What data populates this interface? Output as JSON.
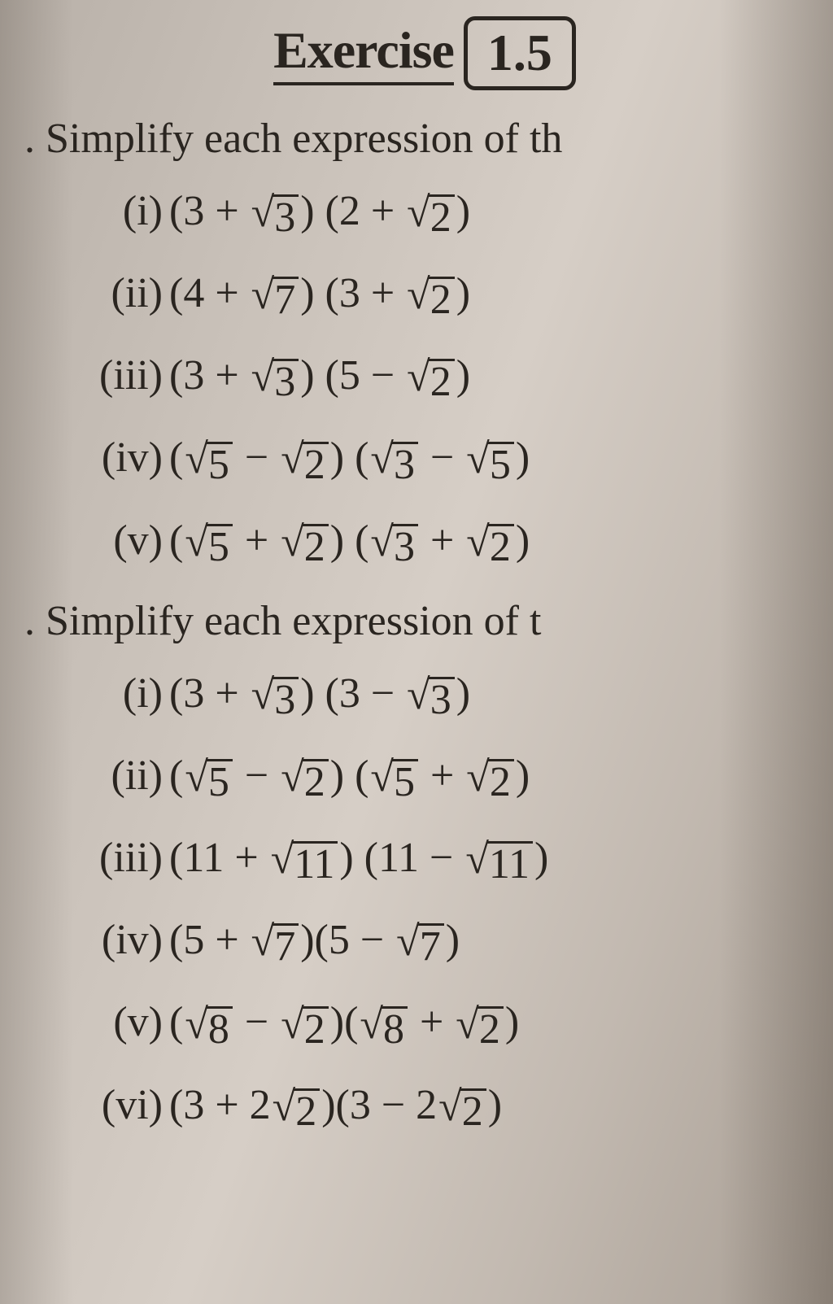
{
  "header": {
    "label": "Exercise",
    "number": "1.5"
  },
  "sections": [
    {
      "instruction": ". Simplify each expression of th",
      "items": [
        {
          "num": "(i)",
          "expr": [
            [
              "(3 + "
            ],
            [
              "sqrt",
              "3"
            ],
            [
              ") (2 + "
            ],
            [
              "sqrt",
              "2"
            ],
            [
              ")"
            ]
          ]
        },
        {
          "num": "(ii)",
          "expr": [
            [
              "(4 + "
            ],
            [
              "sqrt",
              "7"
            ],
            [
              ") (3 + "
            ],
            [
              "sqrt",
              "2"
            ],
            [
              ")"
            ]
          ]
        },
        {
          "num": "(iii)",
          "expr": [
            [
              "(3 + "
            ],
            [
              "sqrt",
              "3"
            ],
            [
              ") (5 − "
            ],
            [
              "sqrt",
              "2"
            ],
            [
              ")"
            ]
          ]
        },
        {
          "num": "(iv)",
          "expr": [
            [
              "("
            ],
            [
              "sqrt",
              "5"
            ],
            [
              " − "
            ],
            [
              "sqrt",
              "2"
            ],
            [
              ") ("
            ],
            [
              "sqrt",
              "3"
            ],
            [
              " − "
            ],
            [
              "sqrt",
              "5"
            ],
            [
              ")"
            ]
          ]
        },
        {
          "num": "(v)",
          "expr": [
            [
              "("
            ],
            [
              "sqrt",
              "5"
            ],
            [
              " + "
            ],
            [
              "sqrt",
              "2"
            ],
            [
              ") ("
            ],
            [
              "sqrt",
              "3"
            ],
            [
              " + "
            ],
            [
              "sqrt",
              "2"
            ],
            [
              ")"
            ]
          ]
        }
      ]
    },
    {
      "instruction": ". Simplify each expression of t",
      "items": [
        {
          "num": "(i)",
          "expr": [
            [
              "(3 + "
            ],
            [
              "sqrt",
              "3"
            ],
            [
              ") (3 − "
            ],
            [
              "sqrt",
              "3"
            ],
            [
              ")"
            ]
          ]
        },
        {
          "num": "(ii)",
          "expr": [
            [
              "("
            ],
            [
              "sqrt",
              "5"
            ],
            [
              " − "
            ],
            [
              "sqrt",
              "2"
            ],
            [
              ") ("
            ],
            [
              "sqrt",
              "5"
            ],
            [
              " + "
            ],
            [
              "sqrt",
              "2"
            ],
            [
              ")"
            ]
          ]
        },
        {
          "num": "(iii)",
          "expr": [
            [
              "(11 + "
            ],
            [
              "sqrt",
              "11"
            ],
            [
              ") (11 − "
            ],
            [
              "sqrt",
              "11"
            ],
            [
              ")"
            ]
          ]
        },
        {
          "num": "(iv)",
          "expr": [
            [
              "(5 + "
            ],
            [
              "sqrt",
              "7"
            ],
            [
              ")(5 − "
            ],
            [
              "sqrt",
              "7"
            ],
            [
              ")"
            ]
          ]
        },
        {
          "num": "(v)",
          "expr": [
            [
              "("
            ],
            [
              "sqrt",
              "8"
            ],
            [
              " − "
            ],
            [
              "sqrt",
              "2"
            ],
            [
              ")("
            ],
            [
              "sqrt",
              "8"
            ],
            [
              " + "
            ],
            [
              "sqrt",
              "2"
            ],
            [
              ")"
            ]
          ]
        },
        {
          "num": "(vi)",
          "expr": [
            [
              "(3 + 2"
            ],
            [
              "sqrt",
              "2"
            ],
            [
              ")(3 − 2"
            ],
            [
              "sqrt",
              "2"
            ],
            [
              ")"
            ]
          ]
        }
      ]
    }
  ]
}
